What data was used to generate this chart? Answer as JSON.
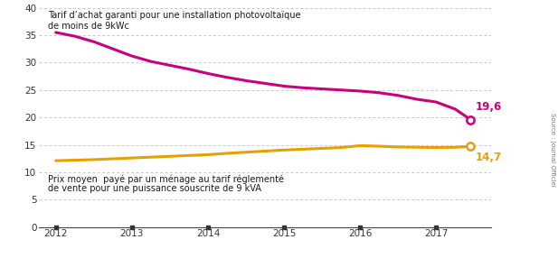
{
  "pink_x": [
    2012,
    2012.25,
    2012.5,
    2012.75,
    2013.0,
    2013.25,
    2013.5,
    2013.75,
    2014.0,
    2014.25,
    2014.5,
    2014.75,
    2015.0,
    2015.25,
    2015.5,
    2015.75,
    2016.0,
    2016.25,
    2016.5,
    2016.75,
    2017.0,
    2017.25,
    2017.45
  ],
  "pink_y": [
    35.5,
    34.8,
    33.8,
    32.5,
    31.2,
    30.2,
    29.5,
    28.8,
    28.0,
    27.3,
    26.7,
    26.2,
    25.7,
    25.4,
    25.2,
    25.0,
    24.8,
    24.5,
    24.0,
    23.3,
    22.8,
    21.5,
    19.6
  ],
  "orange_x": [
    2012,
    2012.25,
    2012.5,
    2012.75,
    2013.0,
    2013.25,
    2013.5,
    2013.75,
    2014.0,
    2014.25,
    2014.5,
    2014.75,
    2015.0,
    2015.25,
    2015.5,
    2015.75,
    2016.0,
    2016.25,
    2016.5,
    2016.75,
    2017.0,
    2017.25,
    2017.45
  ],
  "orange_y": [
    12.1,
    12.2,
    12.3,
    12.45,
    12.6,
    12.75,
    12.9,
    13.05,
    13.2,
    13.45,
    13.65,
    13.85,
    14.05,
    14.2,
    14.35,
    14.5,
    14.85,
    14.75,
    14.6,
    14.55,
    14.5,
    14.55,
    14.7
  ],
  "pink_color": "#cc007a",
  "orange_color": "#e8a000",
  "pink_label_value": "19,6",
  "orange_label_value": "14,7",
  "pink_annotation_line1": "Tarif d’achat garanti pour une installation photovoltaïque",
  "pink_annotation_line2": "de moins de 9kWc",
  "orange_annotation_line1": "Prix moyen  payé par un ménage au tarif réglementé",
  "orange_annotation_line2": "de vente pour une puissance souscrite de 9 kVA",
  "source_text": "Source : Journal Officiel",
  "ylim": [
    0,
    40
  ],
  "xlim": [
    2011.78,
    2017.72
  ],
  "yticks": [
    0,
    5,
    10,
    15,
    20,
    25,
    30,
    35,
    40
  ],
  "xticks": [
    2012,
    2013,
    2014,
    2015,
    2016,
    2017
  ],
  "background_color": "#ffffff",
  "grid_color": "#bbbbbb"
}
